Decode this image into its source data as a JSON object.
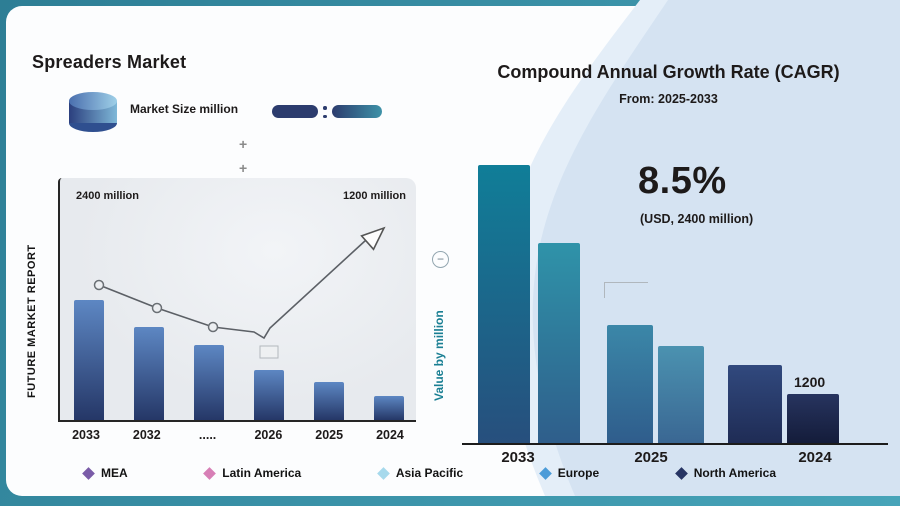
{
  "left_panel": {
    "title": "Spreaders Market",
    "legend_label": "Market Size million",
    "report_banner": "FUTURE MARKET REPORT",
    "axis_max_label": "2400 million",
    "axis_min_label": "1200 million",
    "plus_decor": "+"
  },
  "right_panel": {
    "title": "Compound Annual Growth Rate (CAGR)",
    "subtitle": "From: 2025-2033",
    "cagr_value": "8.5%",
    "cagr_note": "(USD, 2400 million)",
    "ylabel": "Value by million",
    "bar_value_label": "1200"
  },
  "legend": [
    {
      "label": "MEA",
      "color": "#7a5ca8"
    },
    {
      "label": "Latin America",
      "color": "#d77fb6"
    },
    {
      "label": "Asia Pacific",
      "color": "#a6d9ec"
    },
    {
      "label": "Europe",
      "color": "#4b9bd8"
    },
    {
      "label": "North America",
      "color": "#273564"
    }
  ],
  "icons": {
    "minus_circle": "−"
  },
  "colors": {
    "frame_teal_start": "#2d7e95",
    "frame_teal_end": "#47a4b9",
    "swoosh_outer": "#e4eef8",
    "swoosh_inner": "#d5e3f2",
    "left_bar_top": "#5d87c3",
    "left_bar_bottom": "#253767",
    "value_axis_teal": "#1a7f93"
  },
  "chart_data": [
    {
      "type": "bar",
      "title": "Spreaders Market - Market Size million",
      "categories": [
        "2033",
        "2032",
        ".....",
        "2026",
        "2025",
        "2024"
      ],
      "values": [
        2400,
        1850,
        1500,
        1000,
        760,
        480
      ],
      "value_note": "values estimated from bar heights; chart annotations read 2400 million (left) and 1200 million (right)",
      "overlay": "declining marker line curving up into an outlined arrow",
      "xlabel": "",
      "ylabel": "FUTURE MARKET REPORT"
    },
    {
      "type": "bar",
      "title": "Compound Annual Growth Rate (CAGR)",
      "subtitle": "From: 2025-2033",
      "categories": [
        "2033",
        "2025",
        "2024"
      ],
      "series": [
        {
          "name": "primary",
          "values": [
            2400,
            1020,
            675
          ],
          "gradients": [
            [
              "#107e98",
              "#274f7d"
            ],
            [
              "#3b87a8",
              "#2f5d8c"
            ],
            [
              "#31497e",
              "#1f2c55"
            ]
          ]
        },
        {
          "name": "secondary",
          "values": [
            1730,
            840,
            420
          ],
          "gradients": [
            [
              "#2f93a9",
              "#2f5e8b"
            ],
            [
              "#4b92b0",
              "#3a6793"
            ],
            [
              "#27345f",
              "#141c3a"
            ]
          ]
        }
      ],
      "ylabel": "Value by million",
      "annotations": [
        "8.5%",
        "(USD, 2400 million)",
        "1200"
      ],
      "value_note": "values estimated from bar heights"
    }
  ]
}
